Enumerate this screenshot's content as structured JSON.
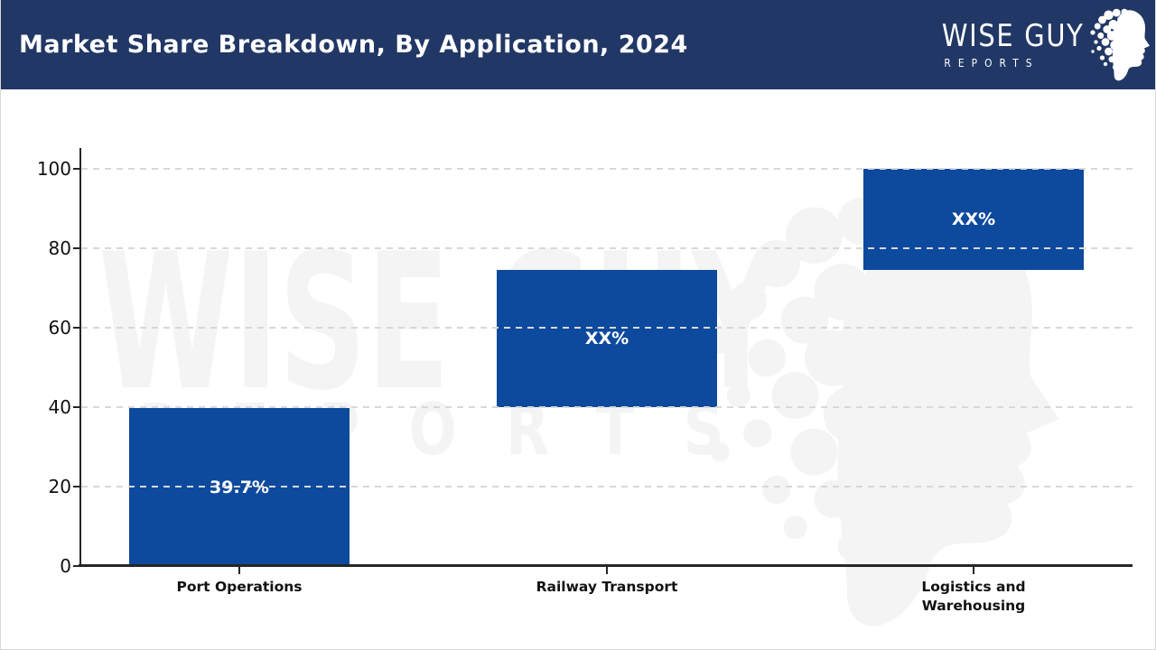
{
  "header": {
    "title": "Market Share Breakdown, By Application, 2024",
    "logo": {
      "wordmark": "WISE GUY",
      "subtext": "REPORTS"
    }
  },
  "watermark": {
    "wordmark": "WISE GUY",
    "subtext": "REPORTS"
  },
  "chart_data": {
    "type": "bar",
    "subtype": "waterfall",
    "title": "Market Share Breakdown, By Application, 2024",
    "categories": [
      "Port Operations",
      "Railway Transport",
      "Logistics and Warehousing"
    ],
    "segments": [
      {
        "category": "Port Operations",
        "start": 0,
        "end": 39.7,
        "value_label": "39.7%"
      },
      {
        "category": "Railway Transport",
        "start": 40,
        "end": 74.5,
        "value_label": "XX%"
      },
      {
        "category": "Logistics and Warehousing",
        "start": 74.5,
        "end": 100,
        "value_label": "XX%"
      }
    ],
    "xlabel": "",
    "ylabel": "",
    "ylim": [
      0,
      100
    ],
    "yticks": [
      0,
      20,
      40,
      60,
      80,
      100
    ],
    "grid": "horizontal-dashed",
    "legend": "none"
  },
  "colors": {
    "header_bg": "#213765",
    "bar": "#0d4a9e",
    "bar_label": "#ffffff",
    "grid": "#d8d8d8",
    "axis": "#262626",
    "watermark": "#f4f4f4"
  }
}
